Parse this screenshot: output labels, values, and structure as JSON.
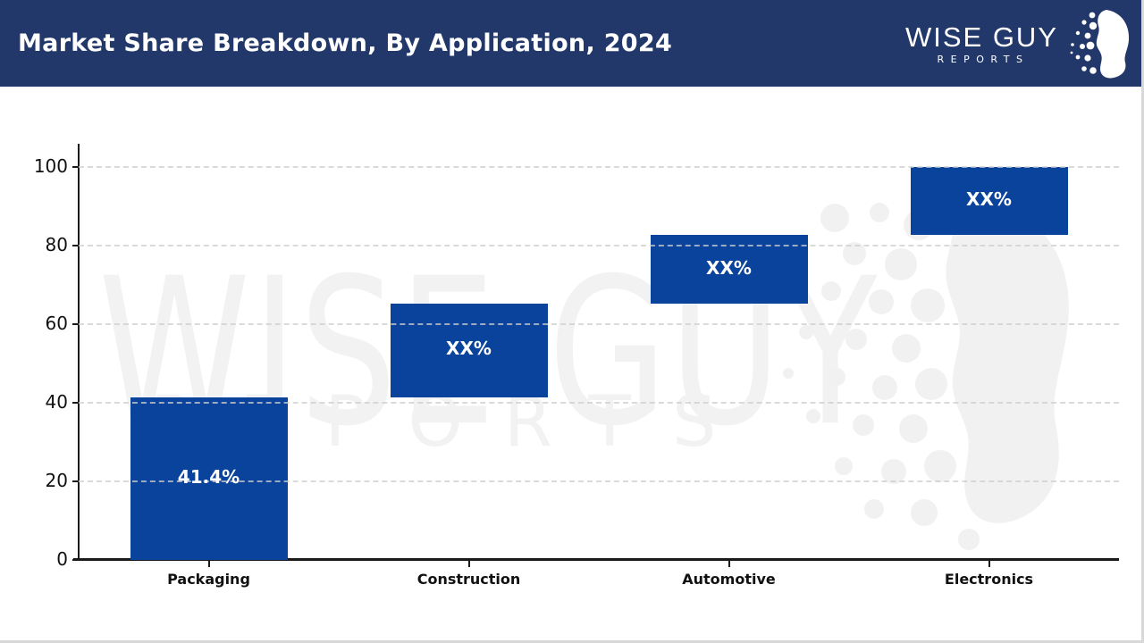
{
  "header": {
    "title": "Market Share Breakdown, By Application, 2024"
  },
  "logo": {
    "line1": "WISE GUY",
    "line2": "REPORTS"
  },
  "watermark": {
    "line1": "WISE GUY",
    "line2": "REPORTS"
  },
  "chart_data": {
    "type": "bar",
    "subtype": "floating-waterfall",
    "title": "Market Share Breakdown, By Application, 2024",
    "xlabel": "",
    "ylabel": "",
    "categories": [
      "Packaging",
      "Construction",
      "Automotive",
      "Electronics"
    ],
    "segments": [
      {
        "category": "Packaging",
        "start": 0,
        "end": 41.4,
        "label": "41.4%"
      },
      {
        "category": "Construction",
        "start": 41.4,
        "end": 65.2,
        "label": "XX%"
      },
      {
        "category": "Automotive",
        "start": 65.2,
        "end": 82.7,
        "label": "XX%"
      },
      {
        "category": "Electronics",
        "start": 82.7,
        "end": 100,
        "label": "XX%"
      }
    ],
    "ylim": [
      0,
      100
    ],
    "yticks": [
      0,
      20,
      40,
      60,
      80,
      100
    ],
    "grid": "horizontal-dashed",
    "legend": "none",
    "bar_color": "#09439c",
    "bar_label_color": "#ffffff"
  },
  "colors": {
    "header_bg": "#22386a",
    "bar": "#09439c",
    "watermark": "#f2f2f2",
    "axis": "#1a1a1a",
    "grid": "#d4d4d4",
    "page_edge": "#d8d8d8"
  }
}
